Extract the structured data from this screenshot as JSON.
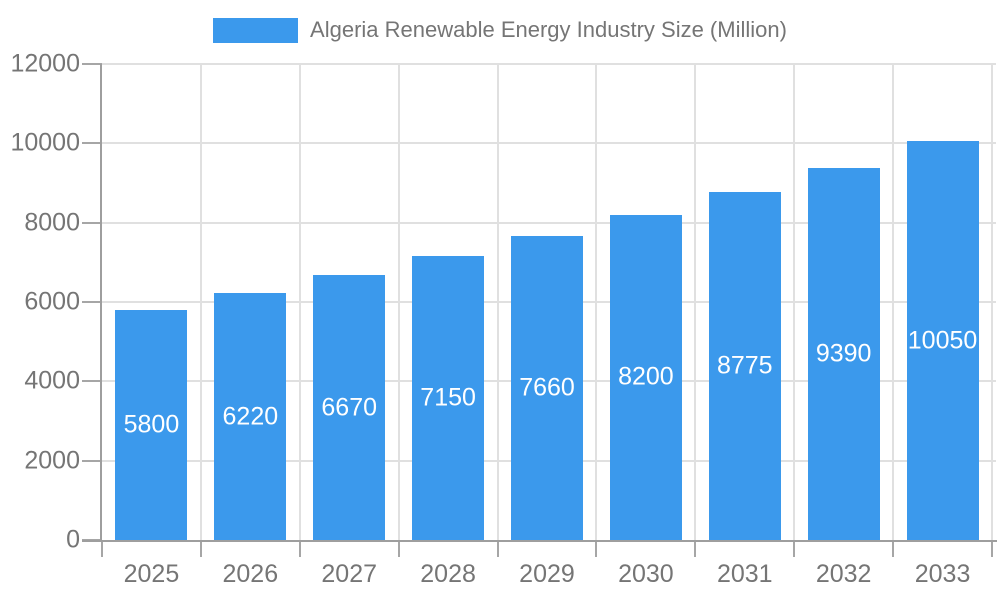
{
  "background": "#ffffff",
  "colors": {
    "bar": "#3B99EC",
    "grid_line": "#E0E0E0",
    "axis_line": "#9E9E9E",
    "tick_mark": "#A6A6A6",
    "axis_text": "#757575",
    "legend_text": "#757575",
    "bar_value_text": "#FFFFFF"
  },
  "legend": {
    "label": "Algeria Renewable Energy Industry Size (Million)",
    "position": "top"
  },
  "chart_data": {
    "type": "bar",
    "title": "Algeria Renewable Energy Industry Size (Million)",
    "categories": [
      "2025",
      "2026",
      "2027",
      "2028",
      "2029",
      "2030",
      "2031",
      "2032",
      "2033"
    ],
    "values": [
      5800,
      6220,
      6670,
      7150,
      7660,
      8200,
      8775,
      9390,
      10050
    ],
    "value_label_position": "inside-center",
    "xlabel": "",
    "ylabel": "",
    "ylim": [
      0,
      12000
    ],
    "yticks": [
      0,
      2000,
      4000,
      6000,
      8000,
      10000,
      12000
    ],
    "grid": true,
    "legend_position": "top"
  }
}
